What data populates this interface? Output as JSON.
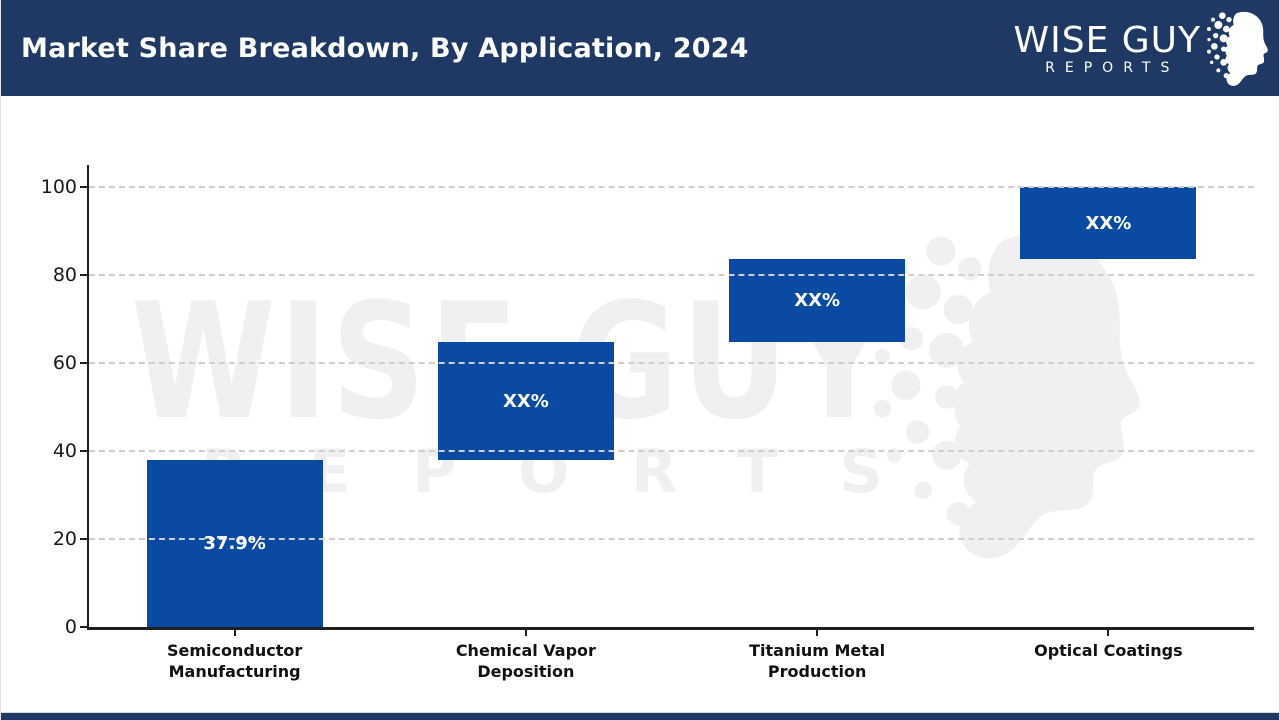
{
  "header": {
    "title": "Market Share Breakdown, By Application, 2024",
    "logo": {
      "line1": "WISE GUY",
      "line2": "REPORTS"
    }
  },
  "watermark": {
    "line1": "WISE GUY",
    "line2": "REPORTS"
  },
  "chart_data": {
    "type": "bar",
    "subtype": "waterfall-floating-bars",
    "title": "Market Share Breakdown, By Application, 2024",
    "categories": [
      "Semiconductor Manufacturing",
      "Chemical Vapor Deposition",
      "Titanium Metal Production",
      "Optical Coatings"
    ],
    "segments": [
      {
        "category": "Semiconductor Manufacturing",
        "start": 0,
        "end": 37.9,
        "label": "37.9%"
      },
      {
        "category": "Chemical Vapor Deposition",
        "start": 37.9,
        "end": 64.8,
        "label": "XX%"
      },
      {
        "category": "Titanium Metal Production",
        "start": 64.8,
        "end": 83.6,
        "label": "XX%"
      },
      {
        "category": "Optical Coatings",
        "start": 83.6,
        "end": 100,
        "label": "XX%"
      }
    ],
    "yticks": [
      0,
      20,
      40,
      60,
      80,
      100
    ],
    "ylim": [
      0,
      100
    ],
    "xlabel": "",
    "ylabel": "",
    "grid": "horizontal-dashed",
    "legend": "none",
    "bar_value_masked_text": "XX%"
  },
  "colors": {
    "header_bg": "#1f3864",
    "title_color": "#ffffff",
    "bar": "#0b4aa2",
    "label_color": "#ffffff",
    "grid": "#cfcfcf",
    "axis": "#1f1f1f",
    "tick_text": "#1a1a1a",
    "watermark": "#f0f0f2"
  }
}
